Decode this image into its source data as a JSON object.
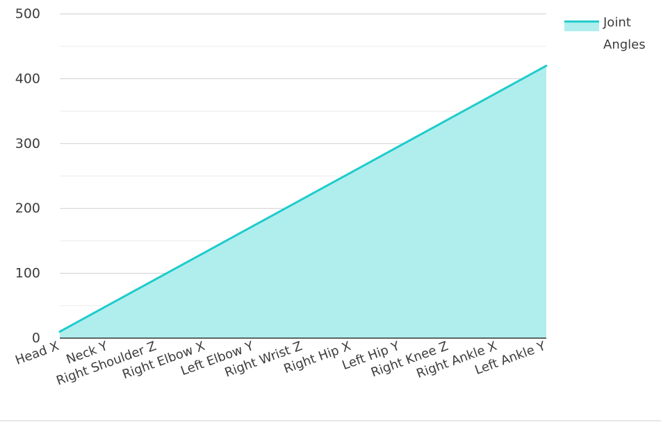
{
  "chart_data": {
    "type": "area",
    "title": "",
    "xlabel": "",
    "ylabel": "",
    "ylim": [
      0,
      500
    ],
    "yticks": [
      0,
      100,
      200,
      300,
      400,
      500
    ],
    "grid": true,
    "legend_position": "top-right",
    "categories": [
      "Head X",
      "Neck Y",
      "Right Shoulder Z",
      "Right Elbow X",
      "Left Elbow Y",
      "Right Wrist Z",
      "Right Hip X",
      "Left Hip Y",
      "Right Knee Z",
      "Right Ankle X",
      "Left Ankle Y"
    ],
    "series": [
      {
        "name": "Joint Angles",
        "legend_lines": [
          "Joint",
          "Angles"
        ],
        "values": [
          10,
          51,
          92,
          133,
          174,
          215,
          256,
          297,
          338,
          379,
          420
        ],
        "line_color": "#1ecbcb",
        "fill_color": "#b0eeee"
      }
    ]
  }
}
